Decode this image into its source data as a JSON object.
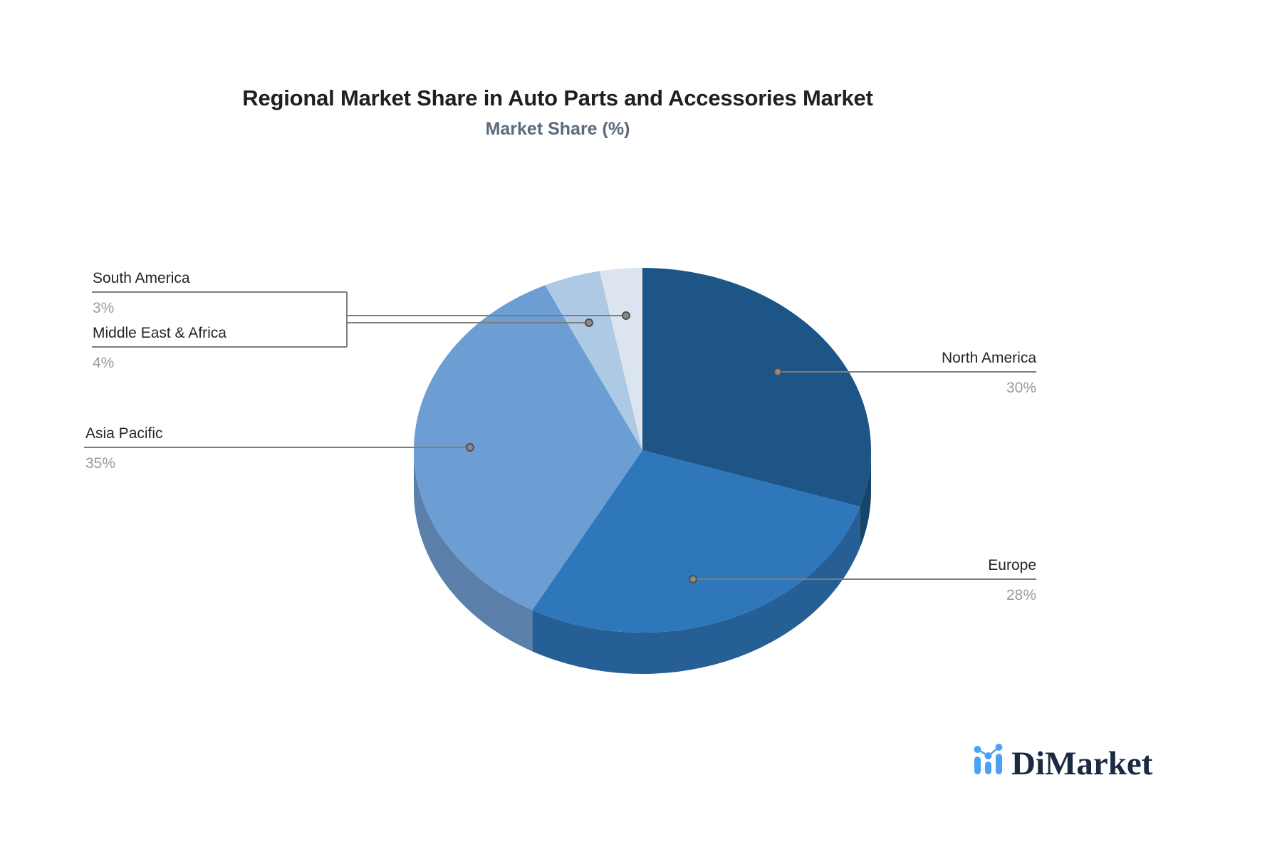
{
  "header": {
    "title": "Regional Market Share in Auto Parts and Accessories Market",
    "subtitle": "Market Share (%)"
  },
  "logo": {
    "text": "DiMarket"
  },
  "chart_data": {
    "type": "pie",
    "title": "Regional Market Share in Auto Parts and Accessories Market",
    "subtitle": "Market Share (%)",
    "unit": "%",
    "start_angle_deg": 0,
    "direction": "clockwise",
    "style": "3d",
    "slices": [
      {
        "label": "North America",
        "value": 30,
        "display": "30%",
        "color": "#1d5586",
        "side_color": "#174569"
      },
      {
        "label": "Europe",
        "value": 28,
        "display": "28%",
        "color": "#2e77bb",
        "side_color": "#265f96"
      },
      {
        "label": "Asia Pacific",
        "value": 35,
        "display": "35%",
        "color": "#6d9ed3",
        "side_color": "#5a80a9"
      },
      {
        "label": "Middle East & Africa",
        "value": 4,
        "display": "4%",
        "color": "#aec9e4",
        "side_color": "#8ea4ba"
      },
      {
        "label": "South America",
        "value": 3,
        "display": "3%",
        "color": "#dce4ef",
        "side_color": "#b4bcc6"
      }
    ],
    "colors": {
      "connector": "#7d7d7d",
      "label_text": "#262626",
      "value_text": "#9a9a9a"
    }
  }
}
